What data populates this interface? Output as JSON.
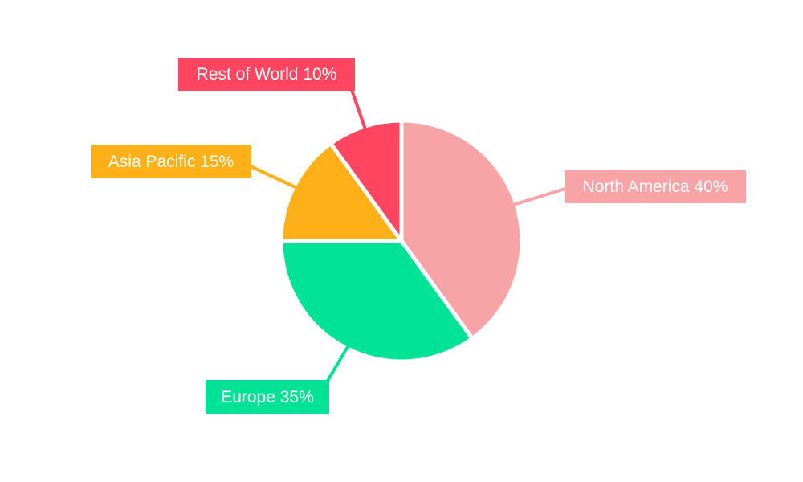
{
  "page": {
    "background_color": "#ffffff",
    "label_text_color": "#ffffff"
  },
  "chart_data": {
    "type": "pie",
    "title": "",
    "unit": "%",
    "start_angle_deg": 0,
    "direction": "clockwise",
    "legend": "none",
    "slices": [
      {
        "label": "North America",
        "value": 40,
        "callout": "North America 40%",
        "color": "#F8A3A6"
      },
      {
        "label": "Europe",
        "value": 35,
        "callout": "Europe 35%",
        "color": "#00E396"
      },
      {
        "label": "Asia Pacific",
        "value": 15,
        "callout": "Asia Pacific 15%",
        "color": "#FEB019"
      },
      {
        "label": "Rest of World",
        "value": 10,
        "callout": "Rest of World 10%",
        "color": "#FF4560"
      }
    ]
  }
}
